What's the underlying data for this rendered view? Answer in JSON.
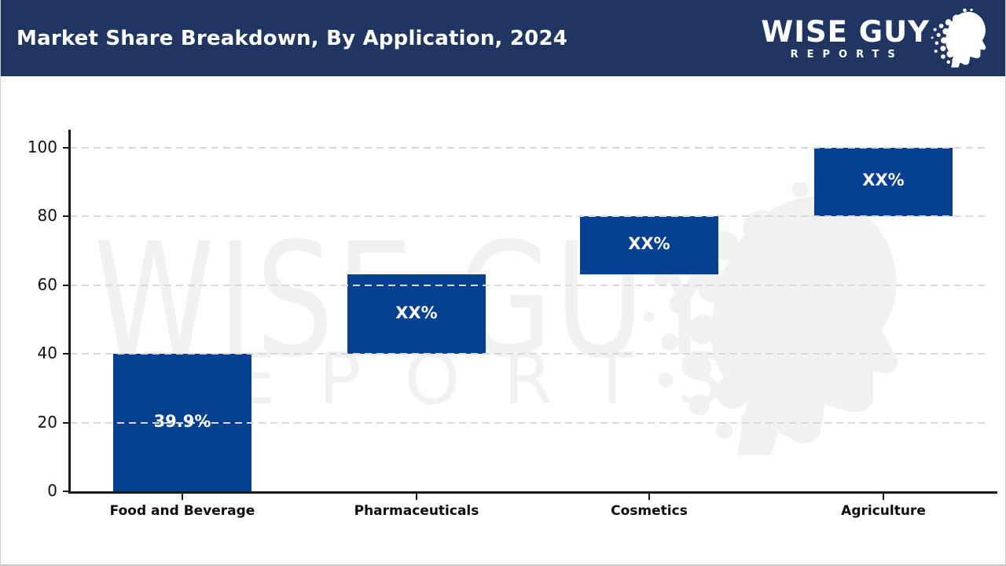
{
  "header": {
    "title": "Market Share Breakdown, By Application, 2024",
    "bg_color": "#203561",
    "logo": {
      "wordmark": "WISE GUY",
      "reports": "REPORTS"
    }
  },
  "watermark": {
    "wordmark": "WISE GUY",
    "reports": "REPORTS"
  },
  "chart_data": {
    "type": "bar",
    "variant": "waterfall",
    "title": "Market Share Breakdown, By Application, 2024",
    "categories": [
      "Food and Beverage",
      "Pharmaceuticals",
      "Cosmetics",
      "Agriculture"
    ],
    "values": [
      39.9,
      23.2,
      16.9,
      20.0
    ],
    "segments": [
      {
        "category": "Food and Beverage",
        "start": 0,
        "end": 39.9,
        "label": "39.9%"
      },
      {
        "category": "Pharmaceuticals",
        "start": 39.9,
        "end": 63.1,
        "label": "XX%"
      },
      {
        "category": "Cosmetics",
        "start": 63.1,
        "end": 80,
        "label": "XX%"
      },
      {
        "category": "Agriculture",
        "start": 80,
        "end": 100,
        "label": "XX%"
      }
    ],
    "yticks": [
      0,
      20,
      40,
      60,
      80,
      100
    ],
    "ylim": [
      0,
      105
    ],
    "grid": "horizontal-dashed",
    "legend": "none",
    "bar_color": "#064191",
    "bar_label_color": "#ffffff",
    "axis_color": "#1a1a1a",
    "gridline_color": "#d9d9d9",
    "tick_label_color": "#111111"
  }
}
